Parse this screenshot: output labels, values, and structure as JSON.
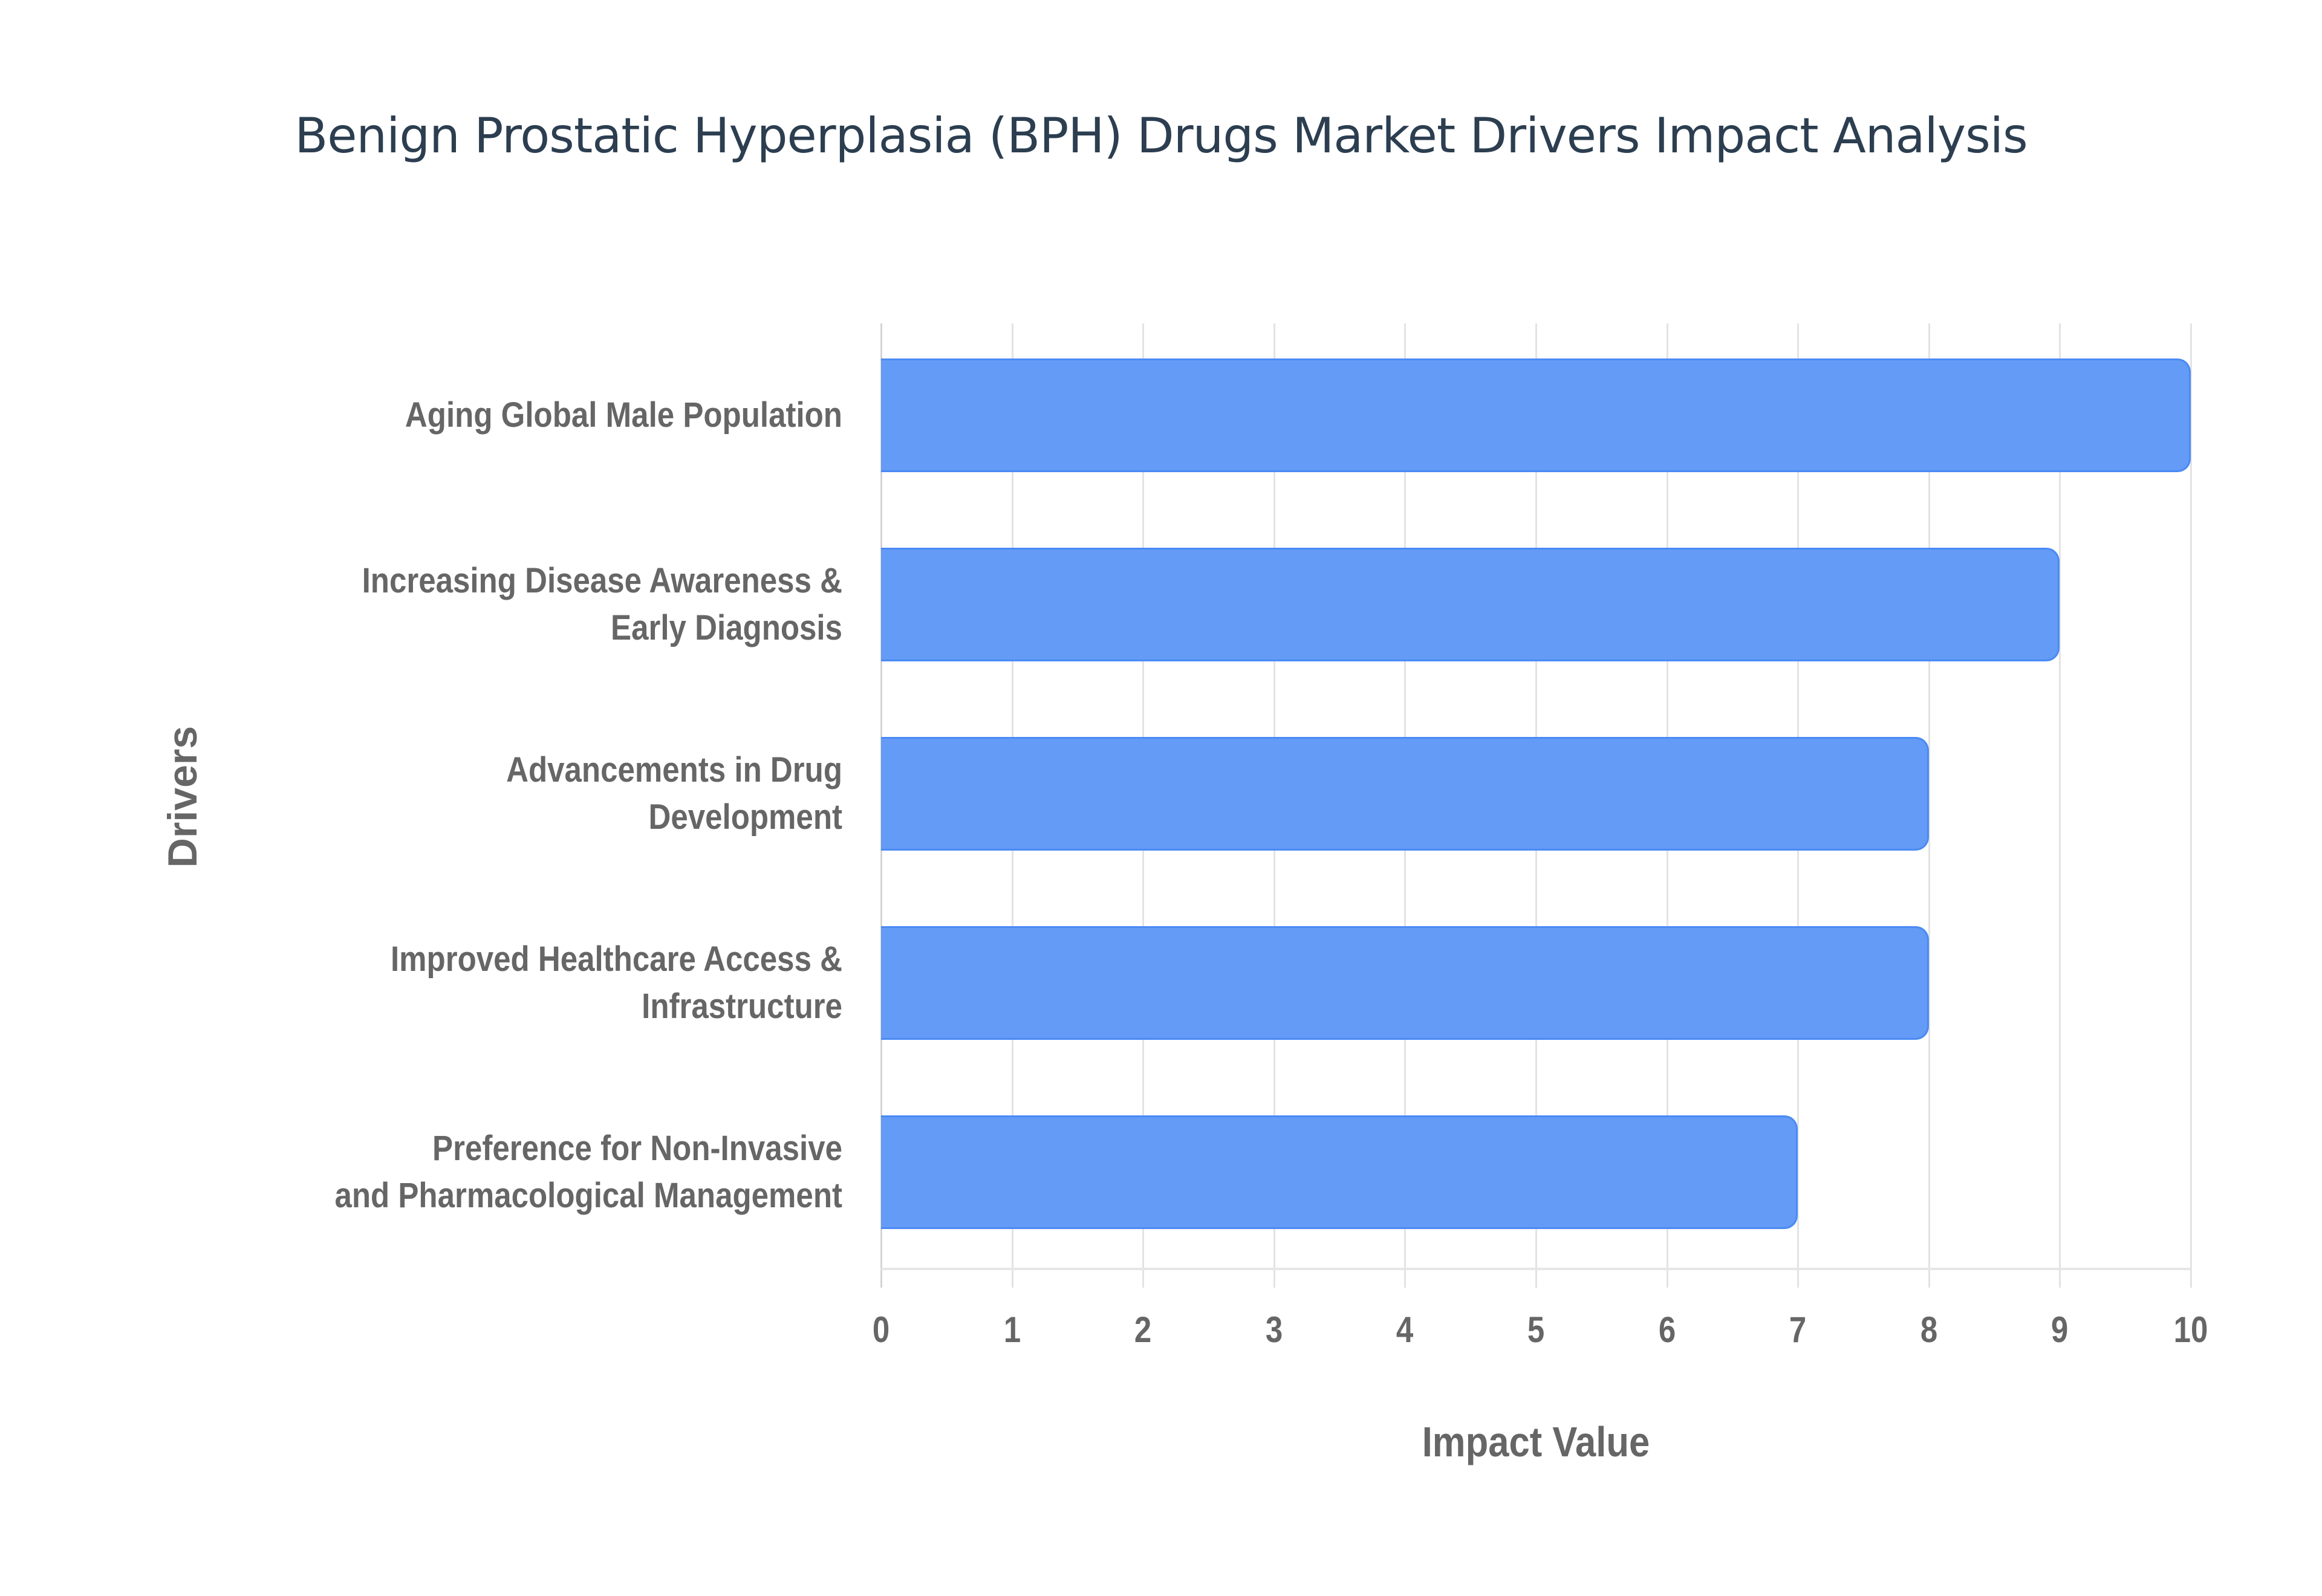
{
  "chart_data": {
    "type": "bar",
    "orientation": "horizontal",
    "title": "Benign Prostatic Hyperplasia (BPH) Drugs Market Drivers Impact Analysis",
    "xlabel": "Impact Value",
    "ylabel": "Drivers",
    "categories": [
      "Aging Global Male Population",
      "Increasing Disease Awareness & Early Diagnosis",
      "Advancements in Drug Development",
      "Improved Healthcare Access & Infrastructure",
      "Preference for Non-Invasive and Pharmacological Management"
    ],
    "category_lines": [
      [
        "Aging Global Male Population"
      ],
      [
        "Increasing Disease Awareness &",
        "Early Diagnosis"
      ],
      [
        "Advancements in Drug",
        "Development"
      ],
      [
        "Improved Healthcare Access &",
        "Infrastructure"
      ],
      [
        "Preference for Non-Invasive",
        "and Pharmacological Management"
      ]
    ],
    "values": [
      10,
      9,
      8,
      8,
      7
    ],
    "xlim": [
      0,
      10
    ],
    "xticks": [
      "0",
      "1",
      "2",
      "3",
      "4",
      "5",
      "6",
      "7",
      "8",
      "9",
      "10"
    ],
    "grid": true,
    "legend": null,
    "colors": {
      "bar_fill": "#639bf6",
      "bar_border": "#4a8af4",
      "title": "#2c3e50",
      "axis_text": "#666666",
      "grid": "#e3e3e3"
    }
  }
}
